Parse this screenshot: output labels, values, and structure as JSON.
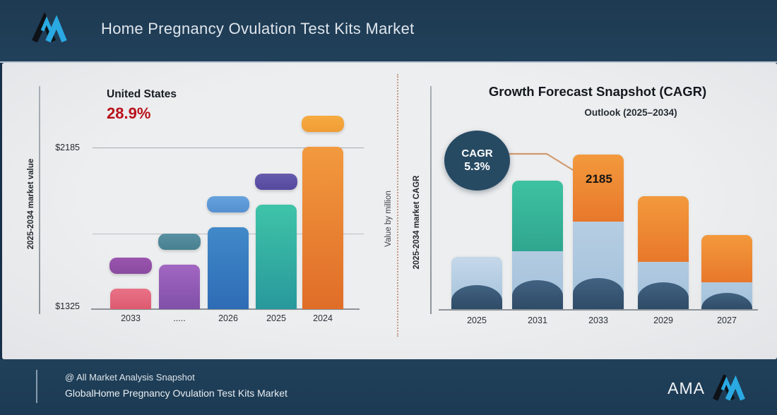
{
  "header": {
    "title": "Home Pregnancy Ovulation Test Kits Market",
    "logo": "ama-mountain-logo"
  },
  "footer": {
    "line1": "@ All Market Analysis Snapshot",
    "line2": "GlobalHome Pregnancy Ovulation Test Kits Market",
    "brand": "AMA"
  },
  "colors": {
    "header_bg": "#1f3c54",
    "panel_bg": "#e9eaec",
    "accent_red": "#b8121a",
    "divider_dotted": "#c49a85",
    "badge_bg": "#274a63",
    "connector": "#d19a6e",
    "navy": [
      "#426282",
      "#2e4b66"
    ],
    "lightblue": [
      "#c5d8e9",
      "#a2c0da"
    ],
    "teal": [
      "#3ec2a1",
      "#2fa68f"
    ],
    "orange": [
      "#f3993c",
      "#e8782b"
    ],
    "logo_black": "#0e1116",
    "logo_blue": "#2aa9e2"
  },
  "chart_data": [
    {
      "type": "bar",
      "title": "United States",
      "highlight_value": "28.9%",
      "ylabel": "2025-2034 market value",
      "ylabel_right": "Value by million",
      "ylim": [
        1325,
        2185
      ],
      "yticks": [
        {
          "label": "$2185",
          "value": 2185
        },
        {
          "label": "$1325",
          "value": 1325
        }
      ],
      "categories": [
        "2033",
        ".....",
        "2026",
        "2025",
        "2024"
      ],
      "values": [
        1433,
        1560,
        1760,
        1880,
        2185
      ],
      "bar_colors": [
        [
          "#e97287",
          "#dd5a70"
        ],
        [
          "#a266c2",
          "#8050a8"
        ],
        [
          "#4189c9",
          "#2e6cb5"
        ],
        [
          "#3fc4a8",
          "#28989c"
        ],
        [
          "#f2993e",
          "#e06d28"
        ]
      ],
      "cap_colors": [
        [
          "#9a55ae",
          "#8a4ba0"
        ],
        [
          "#5890a3",
          "#47808f"
        ],
        [
          "#66a2dd",
          "#5590d0"
        ],
        [
          "#655cae",
          "#55489e"
        ],
        [
          "#f6ab3f",
          "#f09c35"
        ]
      ]
    },
    {
      "type": "stacked-bar",
      "title": "Growth Forecast Snapshot (CAGR)",
      "subtitle": "Outlook (2025–2034)",
      "badge": {
        "label": "CAGR",
        "value": "5.3%"
      },
      "annotation": {
        "text": "2185",
        "category": "2033"
      },
      "ylabel": "2025-2034 market CAGR",
      "ymax": 2185,
      "categories": [
        "2025",
        "2031",
        "2033",
        "2029",
        "2027"
      ],
      "totals": [
        745,
        1817,
        2185,
        1599,
        1052
      ],
      "series": [
        {
          "name": "base",
          "color": "navy",
          "values": [
            348,
            417,
            447,
            387,
            238
          ]
        },
        {
          "name": "mid",
          "color": "lightblue",
          "values": [
            397,
            407,
            794,
            288,
            149
          ]
        },
        {
          "name": "top",
          "colors": [
            null,
            "teal",
            "orange",
            "orange",
            "orange"
          ],
          "values": [
            0,
            993,
            944,
            924,
            665
          ]
        }
      ]
    }
  ]
}
